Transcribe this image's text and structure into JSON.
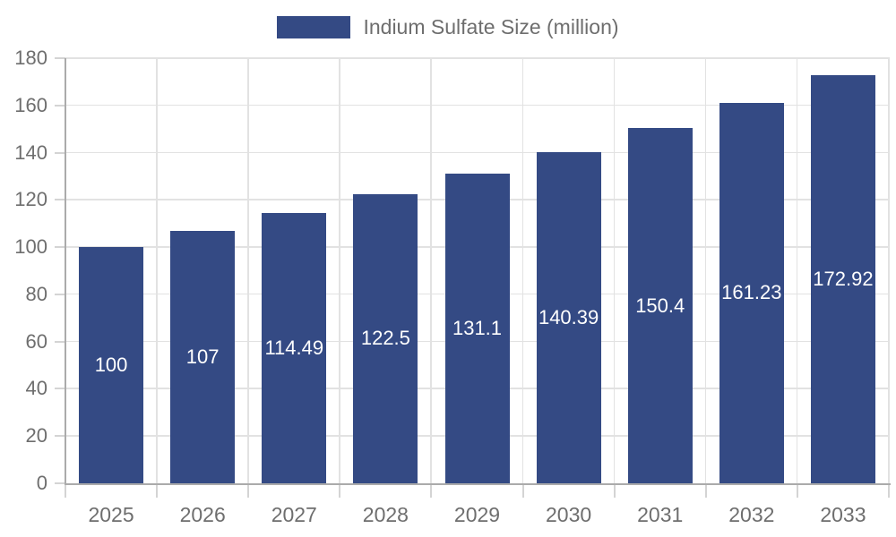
{
  "chart_data": {
    "type": "bar",
    "title": "",
    "legend": {
      "label": "Indium Sulfate Size (million)",
      "position": "top-center"
    },
    "categories": [
      "2025",
      "2026",
      "2027",
      "2028",
      "2029",
      "2030",
      "2031",
      "2032",
      "2033"
    ],
    "series": [
      {
        "name": "Indium Sulfate Size (million)",
        "values": [
          100,
          107,
          114.49,
          122.5,
          131.1,
          140.39,
          150.4,
          161.23,
          172.92
        ]
      }
    ],
    "value_labels": [
      "100",
      "107",
      "114.49",
      "122.5",
      "131.1",
      "140.39",
      "150.4",
      "161.23",
      "172.92"
    ],
    "xlabel": "",
    "ylabel": "",
    "ylim": [
      0,
      180
    ],
    "ytick_interval": 20,
    "yticks": [
      0,
      20,
      40,
      60,
      80,
      100,
      120,
      140,
      160,
      180
    ],
    "grid": true,
    "colors": {
      "bar": "#344a84",
      "axis_line": "#ababab",
      "grid_line": "#e2e2e2",
      "tick_mark": "#d4d4d4",
      "axis_label": "#6e6e6e",
      "value_label": "#ffffff"
    }
  }
}
